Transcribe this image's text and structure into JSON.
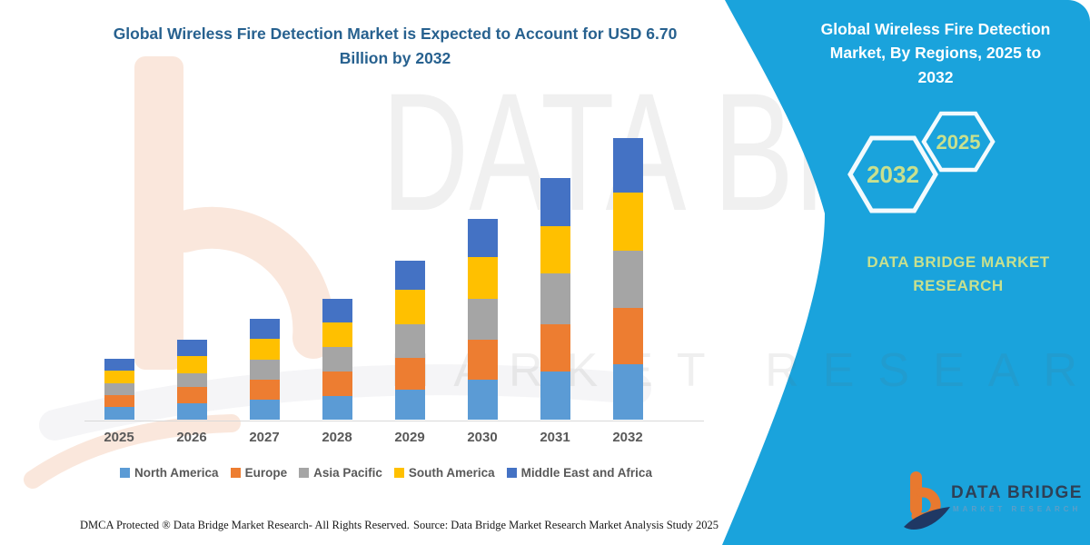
{
  "header": {
    "title": "Global Wireless Fire Detection Market is Expected to Account for USD 6.70 Billion by 2032"
  },
  "sidebar": {
    "bg_color": "#1AA3DC",
    "title": "Global Wireless Fire Detection Market, By Regions, 2025 to 2032",
    "hexagon_back_label": "2032",
    "hexagon_front_label": "2025",
    "accent_color": "#C8E08E",
    "brand_text": "DATA BRIDGE MARKET RESEARCH"
  },
  "chart_data": {
    "type": "bar",
    "stacked": true,
    "title": "Global Wireless Fire Detection Market is Expected to Account for USD 6.70 Billion by 2032",
    "unit": "USD Billion",
    "categories": [
      "2025",
      "2026",
      "2027",
      "2028",
      "2029",
      "2030",
      "2031",
      "2032"
    ],
    "series": [
      {
        "name": "North America",
        "color": "#5B9BD5",
        "values": [
          0.3,
          0.39,
          0.48,
          0.56,
          0.72,
          0.95,
          1.14,
          1.31
        ]
      },
      {
        "name": "Europe",
        "color": "#ED7D31",
        "values": [
          0.29,
          0.38,
          0.47,
          0.58,
          0.74,
          0.96,
          1.13,
          1.35
        ]
      },
      {
        "name": "Asia Pacific",
        "color": "#A5A5A5",
        "values": [
          0.27,
          0.34,
          0.47,
          0.58,
          0.81,
          0.97,
          1.2,
          1.35
        ]
      },
      {
        "name": "South America",
        "color": "#FFC000",
        "values": [
          0.31,
          0.4,
          0.5,
          0.6,
          0.81,
          0.99,
          1.14,
          1.4
        ]
      },
      {
        "name": "Middle East and Africa",
        "color": "#4472C4",
        "values": [
          0.27,
          0.4,
          0.47,
          0.56,
          0.71,
          0.91,
          1.13,
          1.28
        ]
      }
    ],
    "estimated_totals": [
      1.44,
      1.91,
      2.39,
      2.88,
      3.79,
      4.78,
      5.74,
      6.69
    ],
    "final_year_value": 6.7,
    "ylim": [
      0,
      7.2
    ],
    "grid": false,
    "value_axis_visible": false,
    "legend_position": "bottom"
  },
  "watermark": {
    "line1": "DATA BRIDGE",
    "line2": "MARKET RESEARCH"
  },
  "footer": {
    "dmca": "DMCA Protected ® Data Bridge Market Research-  All Rights Reserved.",
    "source": "Source: Data Bridge Market Research  Market Analysis Study 2025"
  },
  "logo": {
    "name": "DATA BRIDGE",
    "subtitle": "MARKET RESEARCH"
  }
}
